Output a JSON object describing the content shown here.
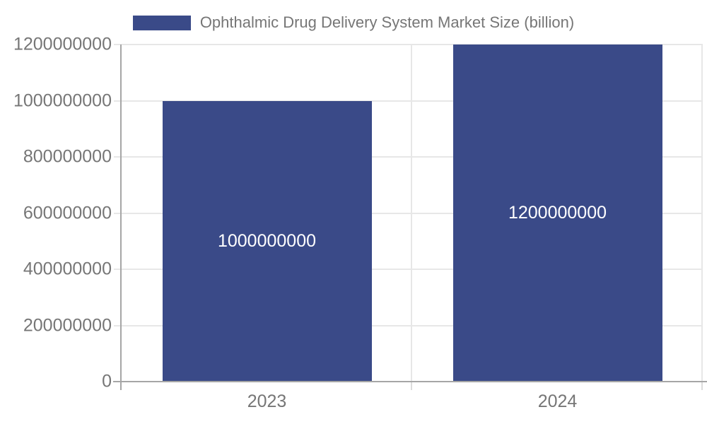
{
  "legend": {
    "label": "Ophthalmic Drug Delivery System Market Size (billion)",
    "swatch_color": "#3a4a88"
  },
  "chart_data": {
    "type": "bar",
    "title": "Ophthalmic Drug Delivery System Market Size (billion)",
    "categories": [
      "2023",
      "2024"
    ],
    "series": [
      {
        "name": "Ophthalmic Drug Delivery System Market Size (billion)",
        "values": [
          1000000000,
          1200000000
        ]
      }
    ],
    "bar_value_labels": [
      "1000000000",
      "1200000000"
    ],
    "ylim": [
      0,
      1200000000
    ],
    "y_ticks": [
      0,
      200000000,
      400000000,
      600000000,
      800000000,
      1000000000,
      1200000000
    ],
    "y_tick_labels": [
      "0",
      "200000000",
      "400000000",
      "600000000",
      "800000000",
      "1000000000",
      "1200000000"
    ],
    "xlabel": "",
    "ylabel": "",
    "grid": true,
    "legend_position": "top-center",
    "bar_color": "#3a4a88",
    "bar_label_color": "#ffffff",
    "axis_text_color": "#767676",
    "gridline_color": "#e7e7e7",
    "spine_color": "#a6a6a6"
  }
}
